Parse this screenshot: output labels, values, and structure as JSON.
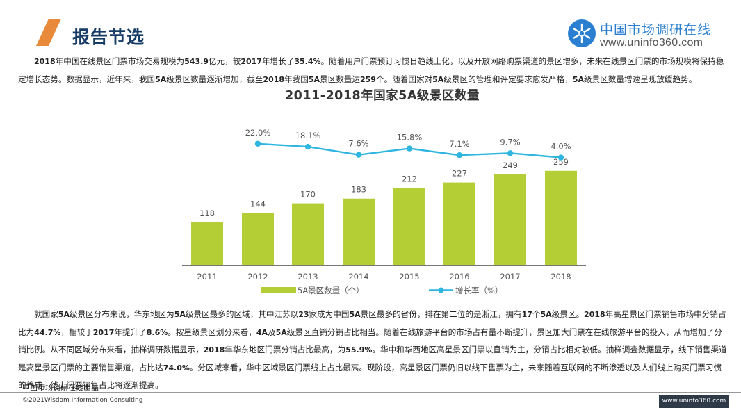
{
  "header": {
    "title": "报告节选",
    "accent_color": "#e98a3a",
    "title_color": "#173c66"
  },
  "logo": {
    "name": "中国市场调研在线",
    "url": "www.uninfo360.com",
    "icon": "snowflake-logo-icon",
    "color": "#2b7fd0"
  },
  "paragraph1": {
    "segments": [
      {
        "t": "2018",
        "b": true
      },
      {
        "t": "年中国在线景区门票市场交易规模为",
        "b": false
      },
      {
        "t": "543.9",
        "b": true
      },
      {
        "t": "亿元，较",
        "b": false
      },
      {
        "t": "2017",
        "b": true
      },
      {
        "t": "年增长了",
        "b": false
      },
      {
        "t": "35.4%",
        "b": true
      },
      {
        "t": "。随着用户门票预订习惯日趋线上化，以及开放网络购票渠道的景区增多，未来在线景区门票的市场规模将保持稳定增长态势。数据显示，近年来，我国",
        "b": false
      },
      {
        "t": "5A",
        "b": true
      },
      {
        "t": "级景区数量逐渐增加，截至",
        "b": false
      },
      {
        "t": "2018",
        "b": true
      },
      {
        "t": "年我国",
        "b": false
      },
      {
        "t": "5A",
        "b": true
      },
      {
        "t": "景区数量达",
        "b": false
      },
      {
        "t": "259",
        "b": true
      },
      {
        "t": "个。随着国家对",
        "b": false
      },
      {
        "t": "5A",
        "b": true
      },
      {
        "t": "级景区的管理和评定要求愈发严格，",
        "b": false
      },
      {
        "t": "5A",
        "b": true
      },
      {
        "t": "级景区数量增速呈现放缓趋势。",
        "b": false
      }
    ]
  },
  "chart_data": {
    "type": "bar",
    "title": "2011-2018年国家5A级景区数量",
    "categories": [
      "2011",
      "2012",
      "2013",
      "2014",
      "2015",
      "2016",
      "2017",
      "2018"
    ],
    "series": [
      {
        "name": "5A景区数量（个）",
        "type": "bar",
        "color": "#b3cf35",
        "values": [
          118,
          144,
          170,
          183,
          212,
          227,
          249,
          259
        ],
        "labels": [
          "118",
          "144",
          "170",
          "183",
          "212",
          "227",
          "249",
          "259"
        ]
      },
      {
        "name": "增长率（%）",
        "type": "line",
        "color": "#2fb6e0",
        "values": [
          22.0,
          18.1,
          7.6,
          15.8,
          7.1,
          9.7,
          4.0
        ],
        "x_start_index": 1,
        "labels": [
          "22.0%",
          "18.1%",
          "7.6%",
          "15.8%",
          "7.1%",
          "9.7%",
          "4.0%"
        ]
      }
    ],
    "xlabel": "",
    "ylabel": "",
    "grid": false,
    "legend": "bottom"
  },
  "paragraph2": {
    "segments": [
      {
        "t": "就国家",
        "b": false
      },
      {
        "t": "5A",
        "b": true
      },
      {
        "t": "级景区分布来说，华东地区为",
        "b": false
      },
      {
        "t": "5A",
        "b": true
      },
      {
        "t": "级景区最多的区域，其中江苏以",
        "b": false
      },
      {
        "t": "23",
        "b": true
      },
      {
        "t": "家成为中国",
        "b": false
      },
      {
        "t": "5A",
        "b": true
      },
      {
        "t": "景区最多的省份，排在第二位的是浙江，拥有",
        "b": false
      },
      {
        "t": "17",
        "b": true
      },
      {
        "t": "个",
        "b": false
      },
      {
        "t": "5A",
        "b": true
      },
      {
        "t": "级景区。",
        "b": false
      },
      {
        "t": "2018",
        "b": true
      },
      {
        "t": "年高星景区门票销售市场中分销占比为",
        "b": false
      },
      {
        "t": "44.7%",
        "b": true
      },
      {
        "t": "，相较于",
        "b": false
      },
      {
        "t": "2017",
        "b": true
      },
      {
        "t": "年提升了",
        "b": false
      },
      {
        "t": "8.6%",
        "b": true
      },
      {
        "t": "。按星级景区划分来看，",
        "b": false
      },
      {
        "t": "4A",
        "b": true
      },
      {
        "t": "及",
        "b": false
      },
      {
        "t": "5A",
        "b": true
      },
      {
        "t": "级景区直销分销占比相当。随着在线旅游平台的市场占有量不断提升，景区加大门票在在线旅游平台的投入，从而增加了分销比例。从不同区域分布来看，抽样调研数据显示，",
        "b": false
      },
      {
        "t": "2018",
        "b": true
      },
      {
        "t": "年华东地区门票分销占比最高，为",
        "b": false
      },
      {
        "t": "55.9%",
        "b": true
      },
      {
        "t": "。华中和华西地区高星景区门票以直销为主，分销占比相对较低。抽样调查数据显示，线下销售渠道是高星景区门票的主要销售渠道，占比达",
        "b": false
      },
      {
        "t": "74.0%",
        "b": true
      },
      {
        "t": "。分区域来看，华中区域景区门票线上占比最高。现阶段，高星景区门票仍旧以线下售票为主，未来随着互联网的不断渗透以及人们线上购买门票习惯的养成，线上门票销售占比将逐渐提高。",
        "b": false
      }
    ]
  },
  "footer": {
    "publisher": "中国市场调研在线出品",
    "copyright": "©2021Wisdom Information Consulting",
    "url": "www.uninfo360.com"
  }
}
